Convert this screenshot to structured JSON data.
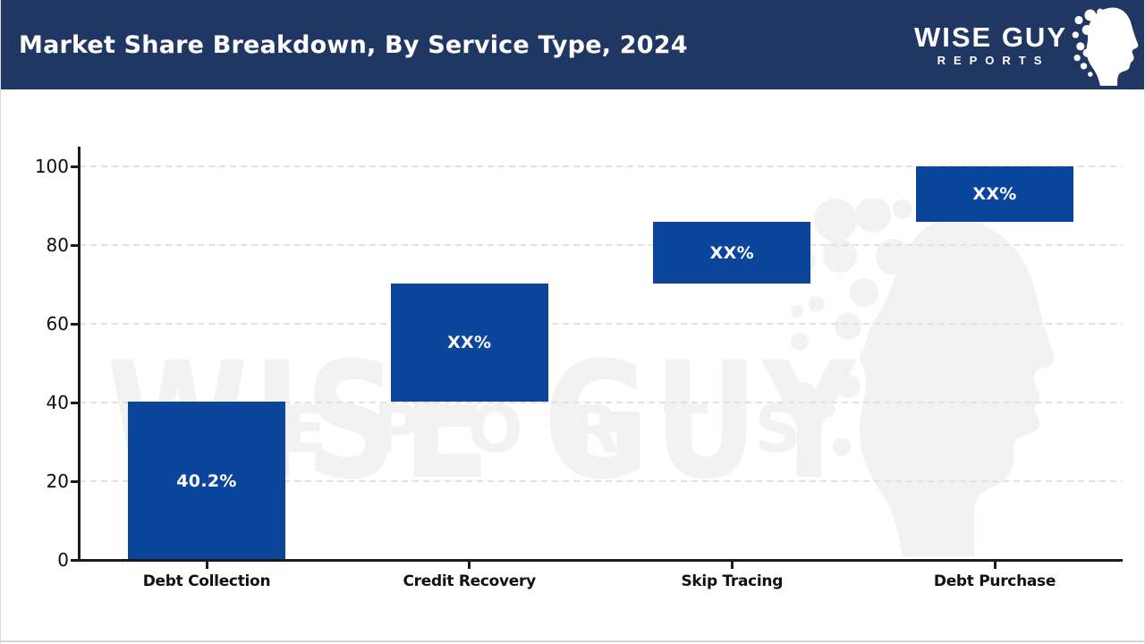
{
  "header": {
    "title": "Market Share Breakdown, By Service Type, 2024",
    "brand_line1": "WISE GUY",
    "brand_line2": "REPORTS"
  },
  "watermark": {
    "line1": "WISE GUY",
    "line2": "REPORTS"
  },
  "chart_data": {
    "type": "bar",
    "variant": "waterfall",
    "title": "Market Share Breakdown, By Service Type, 2024",
    "categories": [
      "Debt Collection",
      "Credit Recovery",
      "Skip Tracing",
      "Debt Purchase"
    ],
    "segments": [
      {
        "category": "Debt Collection",
        "start": 0,
        "end": 40.2,
        "label": "40.2%"
      },
      {
        "category": "Credit Recovery",
        "start": 40.2,
        "end": 70.2,
        "label": "XX%"
      },
      {
        "category": "Skip Tracing",
        "start": 70.2,
        "end": 85.9,
        "label": "XX%"
      },
      {
        "category": "Debt Purchase",
        "start": 85.9,
        "end": 100,
        "label": "XX%"
      }
    ],
    "yticks": [
      0,
      20,
      40,
      60,
      80,
      100
    ],
    "ylim": [
      0,
      105
    ],
    "xlabel": "",
    "ylabel": "",
    "grid": "horizontal dashed",
    "legend": "none",
    "bar_color": "#0b459c",
    "bar_label_color": "#ffffff"
  },
  "colors": {
    "header_bg": "#203764",
    "bar": "#0b459c",
    "grid": "#e2e2e2",
    "spine": "#1b1b1b",
    "watermark": "#f2f2f3"
  }
}
